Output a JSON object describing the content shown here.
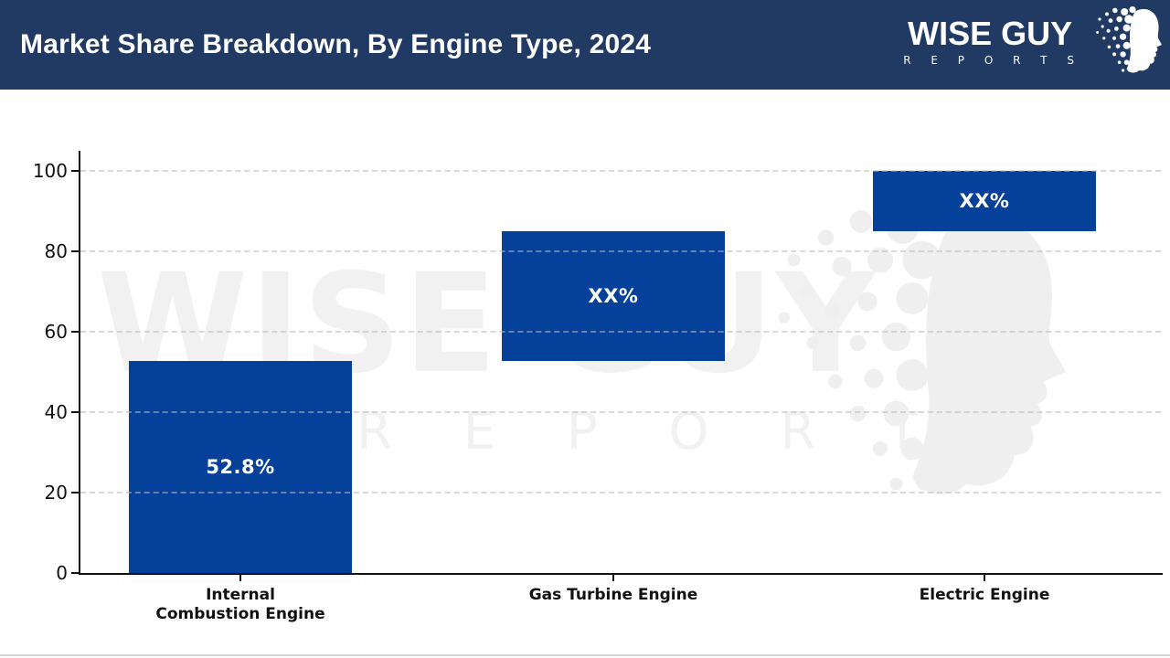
{
  "header": {
    "title": "Market Share Breakdown, By Engine Type, 2024",
    "bg_color": "#213a64",
    "logo": {
      "wordmark": "WISE GUY",
      "subtext": "R E P O R T S",
      "icon": "dot-face-profile-icon",
      "color": "#ffffff"
    }
  },
  "watermark": {
    "wordmark": "WISE GUY",
    "subtext": "R E P O R T S",
    "icon": "dot-face-profile-icon",
    "color": "#f1f1f1"
  },
  "chart_data": {
    "type": "bar",
    "variant": "floating-segment-percentage",
    "title": "Market Share Breakdown, By Engine Type, 2024",
    "categories": [
      [
        "Internal",
        "Combustion Engine"
      ],
      [
        "Gas Turbine Engine"
      ],
      [
        "Electric Engine"
      ]
    ],
    "bars": [
      {
        "category": "Internal Combustion Engine",
        "start": 0,
        "end": 52.8,
        "label": "52.8%"
      },
      {
        "category": "Gas Turbine Engine",
        "start": 52.8,
        "end": 85,
        "label": "XX%"
      },
      {
        "category": "Electric Engine",
        "start": 85,
        "end": 100,
        "label": "XX%"
      }
    ],
    "xlabel": "",
    "ylabel": "",
    "ylim": [
      0,
      100
    ],
    "yticks": [
      0,
      20,
      40,
      60,
      80,
      100
    ],
    "grid": "horizontal-dashed",
    "legend": "none",
    "colors": {
      "bar": "#05409a",
      "grid": "#d9d9d9",
      "axis": "#111111",
      "bar_label": "#ffffff",
      "tick_label": "#111111"
    }
  },
  "footer": {
    "divider_color": "#d4d4d4"
  }
}
